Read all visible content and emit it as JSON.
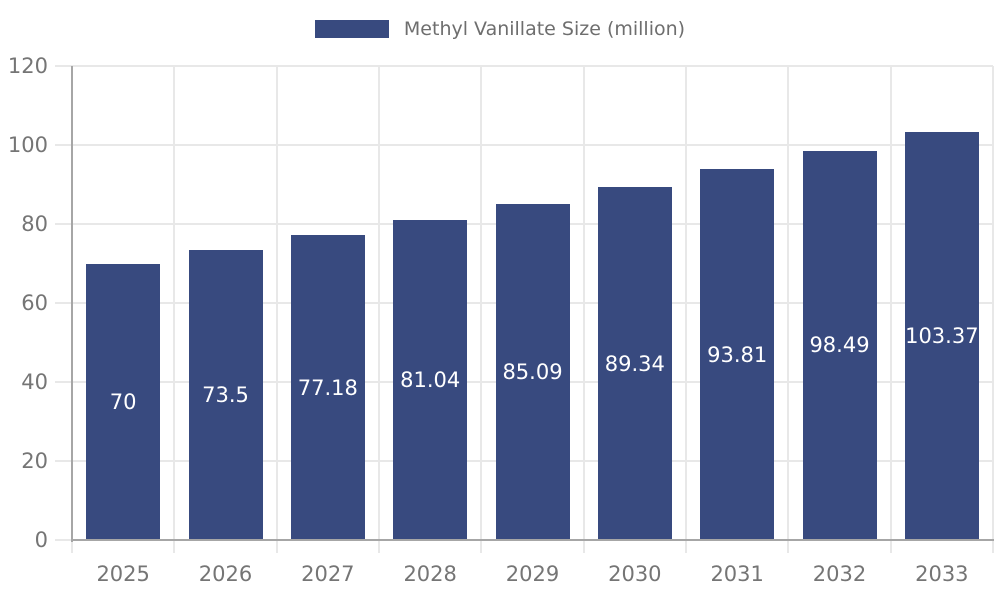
{
  "legend": {
    "label": "Methyl Vanillate Size (million)"
  },
  "chart_data": {
    "type": "bar",
    "title": "",
    "categories": [
      "2025",
      "2026",
      "2027",
      "2028",
      "2029",
      "2030",
      "2031",
      "2032",
      "2033"
    ],
    "series": [
      {
        "name": "Methyl Vanillate Size (million)",
        "values": [
          70,
          73.5,
          77.18,
          81.04,
          85.09,
          89.34,
          93.81,
          98.49,
          103.37
        ]
      }
    ],
    "value_labels": [
      "70",
      "73.5",
      "77.18",
      "81.04",
      "85.09",
      "89.34",
      "93.81",
      "98.49",
      "103.37"
    ],
    "xlabel": "",
    "ylabel": "",
    "ylim": [
      0,
      120
    ],
    "yticks": [
      0,
      20,
      40,
      60,
      80,
      100,
      120
    ],
    "grid": true,
    "legend_position": "top-center",
    "bar_label_position": "inside-center"
  },
  "colors": {
    "bar": "#384A7F",
    "bar_label": "#FFFFFF",
    "grid": "#E8E8E8",
    "axis": "#A6A6A6",
    "tick_label": "#757575",
    "legend_text": "#6E6E6E",
    "background": "#FFFFFF"
  }
}
